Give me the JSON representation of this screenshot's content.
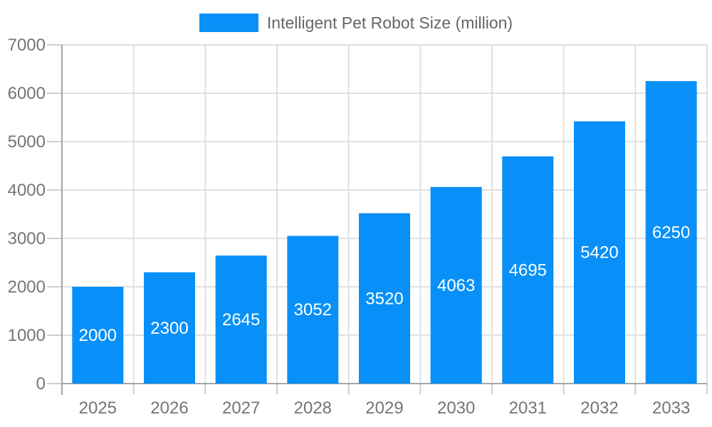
{
  "chart_data": {
    "type": "bar",
    "title": "Intelligent Pet Robot Size (million)",
    "legend": [
      "Intelligent Pet Robot Size (million)"
    ],
    "legend_position": "top-center",
    "categories": [
      "2025",
      "2026",
      "2027",
      "2028",
      "2029",
      "2030",
      "2031",
      "2032",
      "2033"
    ],
    "values": [
      2000,
      2300,
      2645,
      3052,
      3520,
      4063,
      4695,
      5420,
      6250
    ],
    "xlabel": "",
    "ylabel": "",
    "ylim": [
      0,
      7000
    ],
    "yticks": [
      0,
      1000,
      2000,
      3000,
      4000,
      5000,
      6000,
      7000
    ],
    "grid": true,
    "bar_labels_visible": true,
    "colors": {
      "bar": "#0890f8",
      "bar_label": "#ffffff",
      "axis_label": "#757575",
      "legend_text": "#666666",
      "gridline": "#e0e0e0",
      "axis_line": "#a6a6a6",
      "tick": "#cfcfcf",
      "background": "#ffffff"
    }
  }
}
